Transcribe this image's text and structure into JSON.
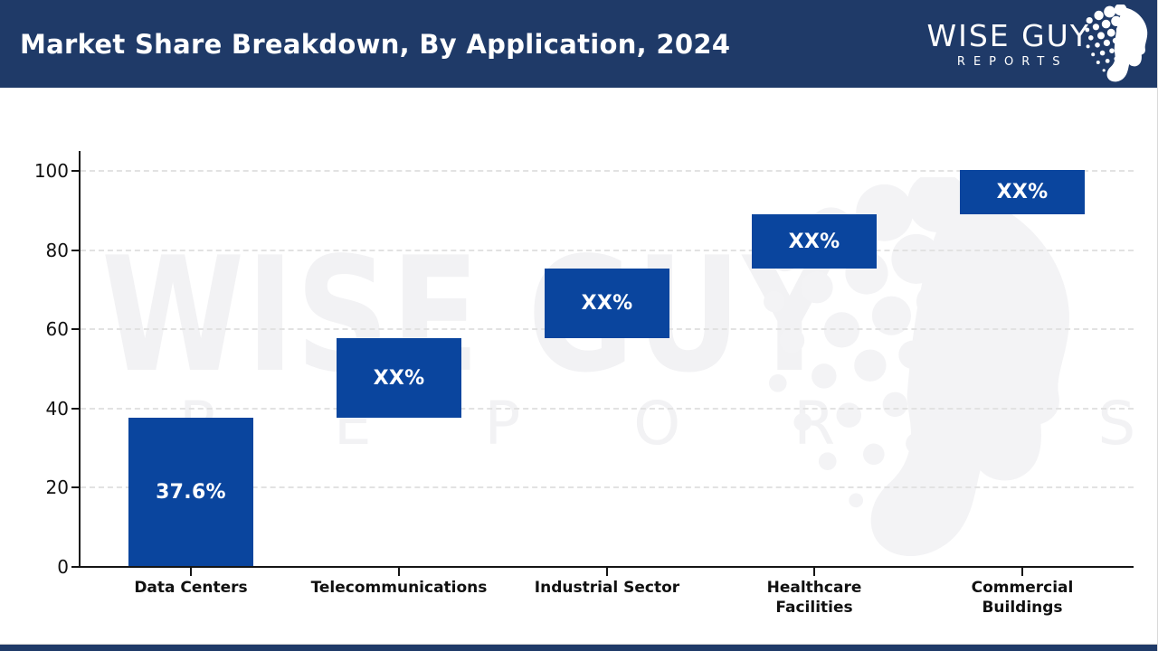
{
  "header": {
    "title": "Market Share Breakdown, By Application, 2024",
    "brand": {
      "name": "WISE GUY",
      "sub": "REPORTS"
    }
  },
  "watermark": {
    "line1": "WISE GUY",
    "line2": "R E P O R T S"
  },
  "colors": {
    "brand_navy": "#1f3a68",
    "bar_blue": "#0a459e",
    "bar_label_white": "#ffffff",
    "axis_text": "#111111"
  },
  "chart_data": {
    "type": "bar",
    "subtype": "waterfall",
    "title": "Market Share Breakdown, By Application, 2024",
    "categories": [
      "Data Centers",
      "Telecommunications",
      "Industrial Sector",
      "Healthcare Facilities",
      "Commercial Buildings"
    ],
    "category_label_lines": [
      [
        "Data Centers"
      ],
      [
        "Telecommunications"
      ],
      [
        "Industrial Sector"
      ],
      [
        "Healthcare",
        "Facilities"
      ],
      [
        "Commercial",
        "Buildings"
      ]
    ],
    "segments": [
      {
        "category": "Data Centers",
        "start": 0,
        "end": 37.6,
        "label": "37.6%"
      },
      {
        "category": "Telecommunications",
        "start": 37.6,
        "end": 57.7,
        "label": "XX%"
      },
      {
        "category": "Industrial Sector",
        "start": 57.7,
        "end": 75.3,
        "label": "XX%"
      },
      {
        "category": "Healthcare Facilities",
        "start": 75.3,
        "end": 89.0,
        "label": "XX%"
      },
      {
        "category": "Commercial Buildings",
        "start": 89.0,
        "end": 100.3,
        "label": "XX%"
      }
    ],
    "ylim": [
      0,
      105
    ],
    "yticks": [
      0,
      20,
      40,
      60,
      80,
      100
    ],
    "grid": "horizontal-dashed",
    "legend": "none",
    "bar_color": "#0a459e",
    "bar_label_color": "#ffffff"
  }
}
